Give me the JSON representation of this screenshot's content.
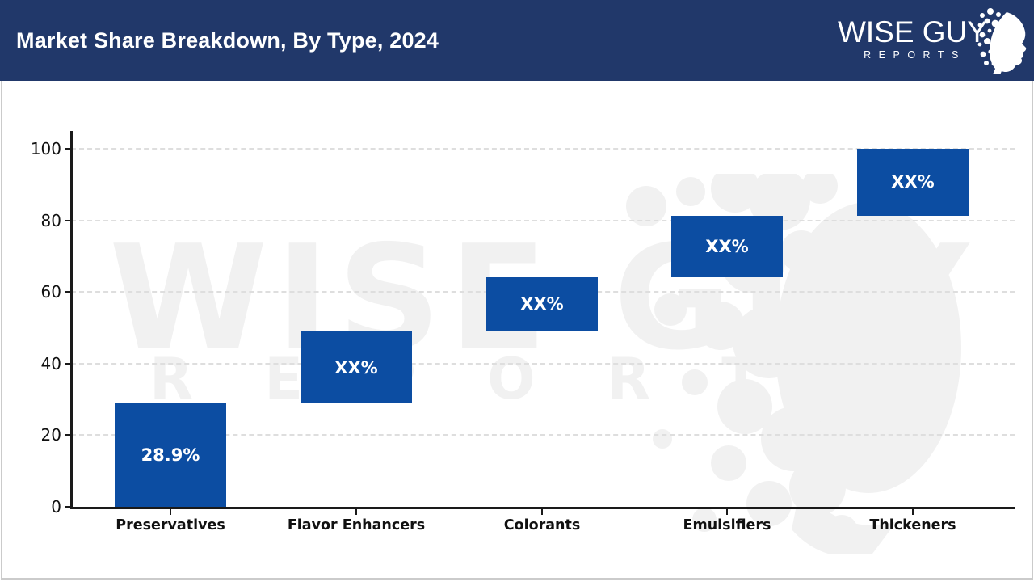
{
  "header": {
    "title": "Market Share Breakdown, By Type, 2024",
    "logo": {
      "line1": "WISE GUY",
      "line2": "REPORTS"
    }
  },
  "watermark": {
    "line1": "WISE GUY",
    "line2": "R E P O R T S"
  },
  "chart_data": {
    "type": "bar",
    "subtype": "waterfall",
    "title": "Market Share Breakdown, By Type, 2024",
    "categories": [
      "Preservatives",
      "Flavor Enhancers",
      "Colorants",
      "Emulsifiers",
      "Thickeners"
    ],
    "segments": [
      {
        "category": "Preservatives",
        "start": 0,
        "end": 28.9,
        "label": "28.9%"
      },
      {
        "category": "Flavor Enhancers",
        "start": 28.9,
        "end": 48.9,
        "label": "XX%"
      },
      {
        "category": "Colorants",
        "start": 48.9,
        "end": 64.2,
        "label": "XX%"
      },
      {
        "category": "Emulsifiers",
        "start": 64.2,
        "end": 81.3,
        "label": "XX%"
      },
      {
        "category": "Thickeners",
        "start": 81.3,
        "end": 100,
        "label": "XX%"
      }
    ],
    "y_axis": {
      "ticks": [
        0,
        20,
        40,
        60,
        80,
        100
      ],
      "range": [
        0,
        105
      ]
    },
    "xlabel": "",
    "ylabel": "",
    "grid": "dashed horizontal",
    "legend": "none",
    "bar_color": "#0c4da2",
    "bar_label_color": "#ffffff"
  },
  "colors": {
    "header_bg": "#21386a",
    "bar": "#0c4da2",
    "axis": "#1a1a1a",
    "grid": "#dedede",
    "watermark": "#f1f1f1",
    "frame_line": "#cbcbcb"
  }
}
